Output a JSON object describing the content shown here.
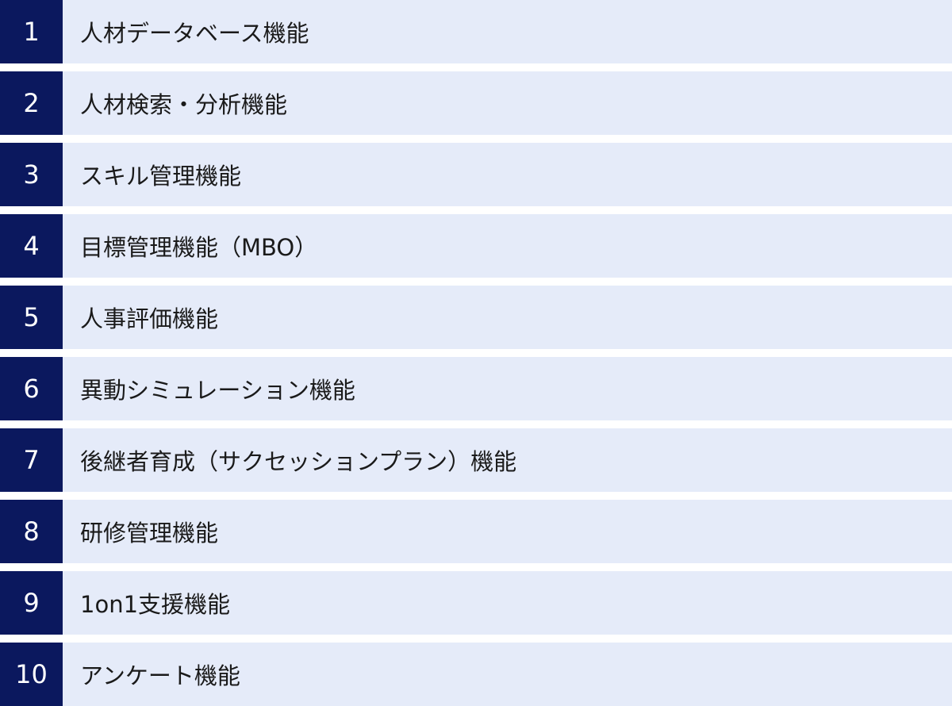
{
  "items": [
    {
      "number": "1",
      "label": "人材データベース機能"
    },
    {
      "number": "2",
      "label": "人材検索・分析機能"
    },
    {
      "number": "3",
      "label": "スキル管理機能"
    },
    {
      "number": "4",
      "label": "目標管理機能（MBO）"
    },
    {
      "number": "5",
      "label": "人事評価機能"
    },
    {
      "number": "6",
      "label": "異動シミュレーション機能"
    },
    {
      "number": "7",
      "label": "後継者育成（サクセッションプラン）機能"
    },
    {
      "number": "8",
      "label": "研修管理機能"
    },
    {
      "number": "9",
      "label": "1on1支援機能"
    },
    {
      "number": "10",
      "label": "アンケート機能"
    }
  ],
  "colors": {
    "number_bg": "#0b185e",
    "label_bg": "#e5ebf9"
  }
}
